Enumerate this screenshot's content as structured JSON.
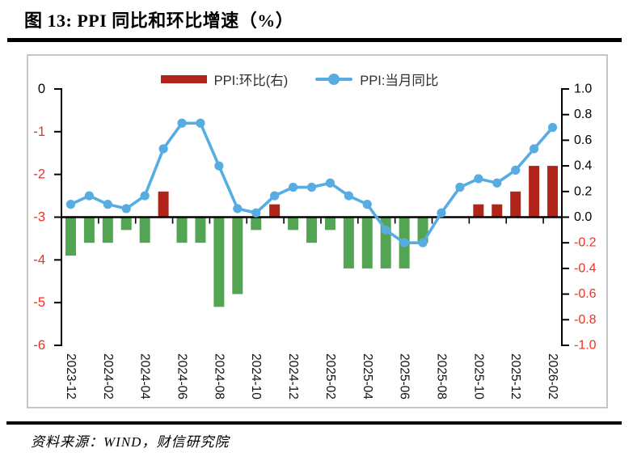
{
  "title": {
    "text": "图 13:  PPI 同比和环比增速（%）"
  },
  "source": {
    "text": "资料来源：WIND，财信研究院"
  },
  "legend": [
    {
      "label": "PPI:环比(右)",
      "type": "bar",
      "color": "#b1241a"
    },
    {
      "label": "PPI:当月同比",
      "type": "line",
      "color": "#57ade2"
    }
  ],
  "colors": {
    "bar_positive": "#b1241a",
    "bar_negative": "#53a553",
    "line": "#57ade2",
    "negative_tick_label": "#ee3124",
    "tick_label": "#000000",
    "axis": "#000000",
    "frame_border": "#c6c6c6"
  },
  "chart_data": {
    "type": "bar",
    "subtype": "bar+line combo, dual axis",
    "title": "PPI 同比和环比增速（%）",
    "xlabel": "",
    "ylabel_left": "",
    "ylabel_right": "",
    "grid": false,
    "legend_position": "top",
    "categories": [
      "2023-12",
      "2024-01",
      "2024-02",
      "2024-03",
      "2024-04",
      "2024-05",
      "2024-06",
      "2024-07",
      "2024-08",
      "2024-09",
      "2024-10",
      "2024-11",
      "2024-12",
      "2025-01",
      "2025-02",
      "2025-03",
      "2025-04",
      "2025-05",
      "2025-06",
      "2025-07",
      "2025-08",
      "2025-09",
      "2025-10",
      "2025-11",
      "2025-12",
      "2026-01",
      "2026-02"
    ],
    "series": [
      {
        "name": "PPI:环比(右)",
        "type": "bar",
        "axis": "right",
        "values": [
          -0.3,
          -0.2,
          -0.2,
          -0.1,
          -0.2,
          0.2,
          -0.2,
          -0.2,
          -0.7,
          -0.6,
          -0.1,
          0.1,
          -0.1,
          -0.2,
          -0.1,
          -0.4,
          -0.4,
          -0.4,
          -0.4,
          -0.2,
          0.0,
          0.0,
          0.1,
          0.1,
          0.2,
          0.4,
          0.4
        ]
      },
      {
        "name": "PPI:当月同比",
        "type": "line",
        "axis": "left",
        "values": [
          -2.7,
          -2.5,
          -2.7,
          -2.8,
          -2.5,
          -1.4,
          -0.8,
          -0.8,
          -1.8,
          -2.8,
          -2.9,
          -2.5,
          -2.3,
          -2.3,
          -2.2,
          -2.5,
          -2.7,
          -3.3,
          -3.6,
          -3.6,
          -2.9,
          -2.3,
          -2.1,
          -2.2,
          -1.9,
          -1.4,
          -0.9
        ]
      }
    ],
    "left_axis": {
      "range": [
        -6,
        0
      ],
      "tick_labels": [
        "0",
        "-1",
        "-2",
        "-3",
        "-4",
        "-5",
        "-6"
      ]
    },
    "right_axis": {
      "range": [
        -1.0,
        1.0
      ],
      "tick_labels": [
        "1.0",
        "0.8",
        "0.6",
        "0.4",
        "0.2",
        "0.0",
        "-0.2",
        "-0.4",
        "-0.6",
        "-0.8",
        "-1.0"
      ]
    },
    "x_tick_labels": [
      "2023-12",
      "2024-02",
      "2024-04",
      "2024-06",
      "2024-08",
      "2024-10",
      "2024-12",
      "2025-02",
      "2025-04",
      "2025-06",
      "2025-08",
      "2025-10",
      "2025-12",
      "2026-02"
    ]
  }
}
